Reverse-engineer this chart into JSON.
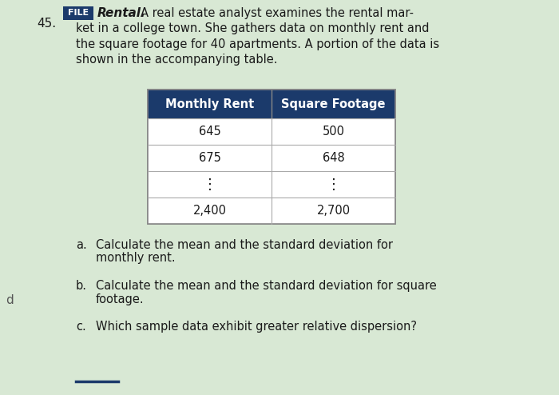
{
  "problem_number": "45.",
  "file_label": "FILE",
  "title_italic": "Rental.",
  "intro_lines": [
    "A real estate analyst examines the rental mar-",
    "ket in a college town. She gathers data on monthly rent and",
    "the square footage for 40 apartments. A portion of the data is",
    "shown in the accompanying table."
  ],
  "col1_header": "Monthly Rent",
  "col2_header": "Square Footage",
  "rows": [
    [
      "645",
      "500"
    ],
    [
      "675",
      "648"
    ],
    [
      "⋮",
      "⋮"
    ],
    [
      "2,400",
      "2,700"
    ]
  ],
  "questions": [
    {
      "label": "a.",
      "lines": [
        "Calculate the mean and the standard deviation for",
        "monthly rent."
      ]
    },
    {
      "label": "b.",
      "lines": [
        "Calculate the mean and the standard deviation for square",
        "footage."
      ]
    },
    {
      "label": "c.",
      "lines": [
        "Which sample data exhibit greater relative dispersion?"
      ]
    }
  ],
  "header_bg": "#1b3a6b",
  "header_text_color": "#ffffff",
  "cell_bg": "#ffffff",
  "border_color": "#aaaaaa",
  "background_color": "#d8e8d4",
  "file_bg": "#1b3a6b",
  "file_text_color": "#ffffff",
  "text_color": "#1a1a1a",
  "side_text": "d",
  "side_text_color": "#555555",
  "underline_color": "#1b3a6b"
}
